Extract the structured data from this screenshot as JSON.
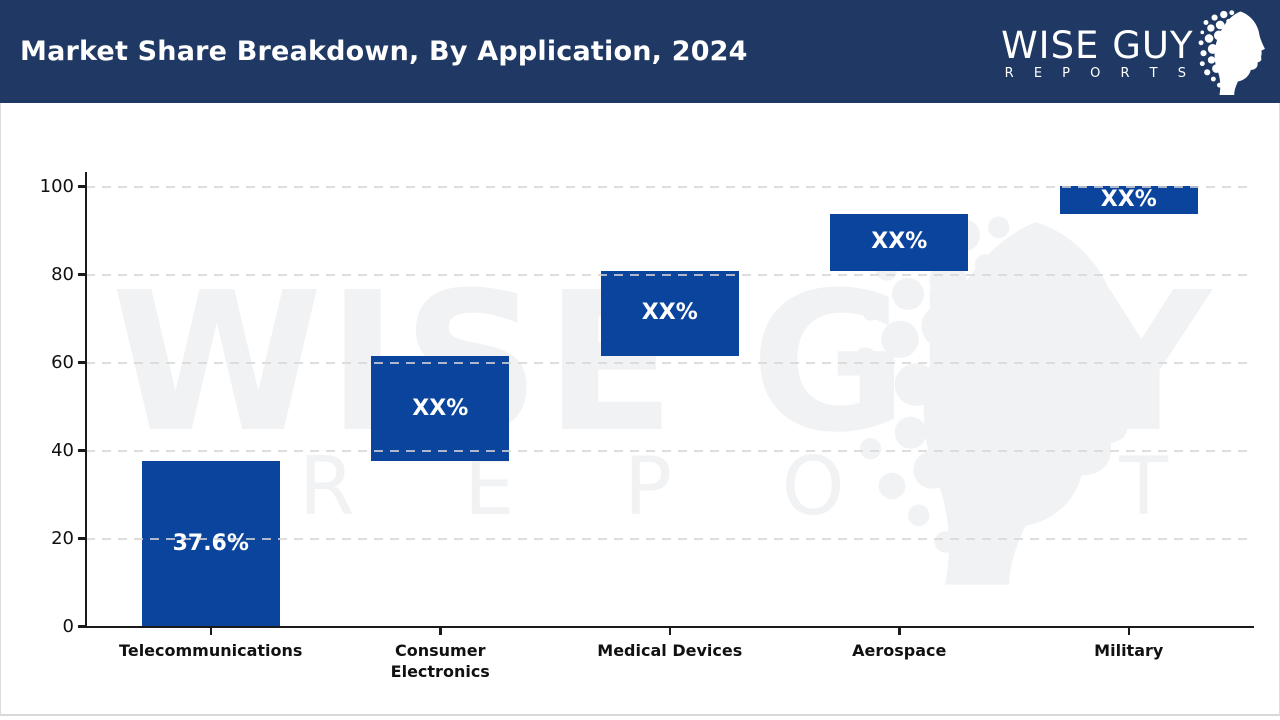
{
  "header": {
    "title": "Market Share Breakdown, By Application, 2024",
    "brand": {
      "line1": "WISE GUY",
      "line2": "R E P O R T S"
    }
  },
  "watermark": {
    "line1": "WISE GUY",
    "line2": "R E P O R T S"
  },
  "colors": {
    "header_bg": "#1f3864",
    "bar": "#0b449c",
    "grid": "#d6d6d6",
    "axis": "#1a1a1a",
    "watermark": "#f1f2f4",
    "bar_label_text": "#ffffff",
    "title_text": "#ffffff"
  },
  "chart_data": {
    "type": "bar",
    "subtype": "waterfall",
    "title": "Market Share Breakdown, By Application, 2024",
    "xlabel": "",
    "ylabel": "",
    "ylim": [
      0,
      103
    ],
    "yticks": [
      0,
      20,
      40,
      60,
      80,
      100
    ],
    "grid": "horizontal-dashed",
    "legend": "none",
    "categories": [
      "Telecommunications",
      "Consumer\nElectronics",
      "Medical Devices",
      "Aerospace",
      "Military"
    ],
    "segments": [
      {
        "category": "Telecommunications",
        "start": 0,
        "end": 37.6,
        "label": "37.6%"
      },
      {
        "category": "Consumer\nElectronics",
        "start": 37.6,
        "end": 61.4,
        "label": "XX%"
      },
      {
        "category": "Medical Devices",
        "start": 61.5,
        "end": 80.8,
        "label": "XX%"
      },
      {
        "category": "Aerospace",
        "start": 80.9,
        "end": 93.7,
        "label": "XX%"
      },
      {
        "category": "Military",
        "start": 93.8,
        "end": 100.2,
        "label": "XX%"
      }
    ]
  }
}
